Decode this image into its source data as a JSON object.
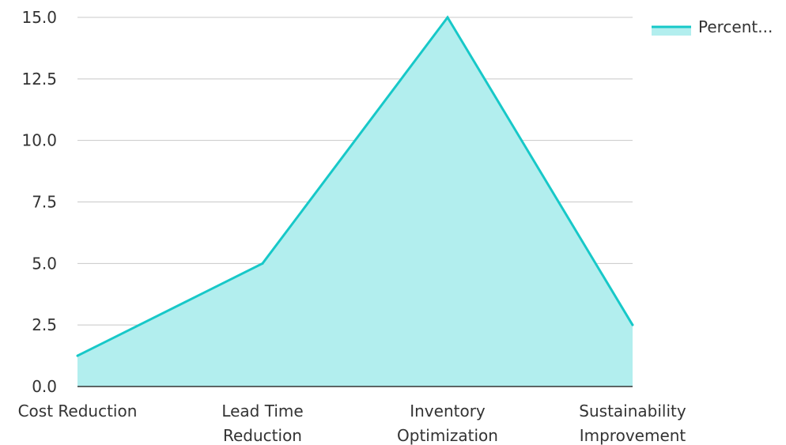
{
  "chart_data": {
    "type": "area",
    "categories": [
      [
        "Cost Reduction"
      ],
      [
        "Lead Time",
        "Reduction"
      ],
      [
        "Inventory",
        "Optimization"
      ],
      [
        "Sustainability",
        "Improvement"
      ]
    ],
    "series": [
      {
        "name": "Percent...",
        "values": [
          1.25,
          5.0,
          15.0,
          2.5
        ],
        "line_color": "#17c8c8",
        "fill_color": "#b2eeee"
      }
    ],
    "yticks": [
      "0.0",
      "2.5",
      "5.0",
      "7.5",
      "10.0",
      "12.5",
      "15.0"
    ],
    "ylim": [
      0,
      15
    ],
    "grid": true,
    "legend_position": "top-right",
    "title": "",
    "xlabel": "",
    "ylabel": ""
  }
}
